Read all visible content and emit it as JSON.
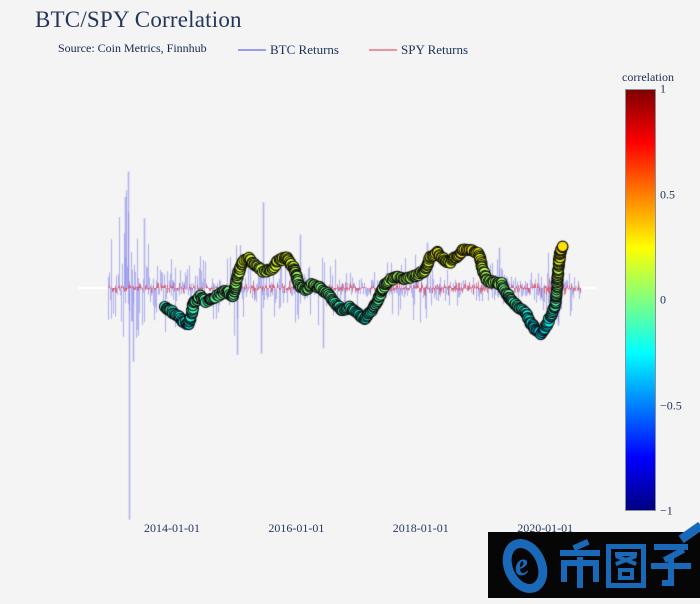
{
  "page": {
    "background": "#f4f4f5",
    "text_color": "#24365a"
  },
  "header": {
    "title": "BTC/SPY Correlation",
    "subtitle": "Source: Coin Metrics, Finnhub"
  },
  "legend": {
    "items": [
      {
        "label": "BTC Returns",
        "color": "#9b9bef"
      },
      {
        "label": "SPY Returns",
        "color": "#f0929b"
      }
    ]
  },
  "colorbar": {
    "title": "correlation",
    "colormap": "jet",
    "min": -1,
    "max": 1,
    "ticks": [
      1,
      0.5,
      0,
      -0.5,
      -1
    ],
    "tick_labels": [
      "1",
      "0.5",
      "0",
      "−0.5",
      "−1"
    ]
  },
  "x_axis": {
    "tick_labels": [
      "2014-01-01",
      "2016-01-01",
      "2018-01-01",
      "2020-01-01"
    ],
    "tick_years": [
      2014,
      2016,
      2018,
      2020
    ]
  },
  "watermark": {
    "text": "币圈子",
    "logo_letter": "e",
    "background": "#060606",
    "color": "#1a69b8"
  },
  "chart_data": {
    "type": "composite",
    "title": "BTC/SPY Correlation",
    "x_range_years": [
      2012.97,
      2020.56
    ],
    "zero_line": {
      "value": 0,
      "color": "#ffffff"
    },
    "series": [
      {
        "name": "BTC Returns",
        "type": "spike-line",
        "color": "rgba(125,125,232,0.55)",
        "volatility_envelope": [
          [
            2013.05,
            0.45
          ],
          [
            2013.2,
            0.62
          ],
          [
            2013.3,
            0.8
          ],
          [
            2013.45,
            0.5
          ],
          [
            2013.7,
            0.38
          ],
          [
            2014.0,
            0.3
          ],
          [
            2014.4,
            0.26
          ],
          [
            2014.8,
            0.22
          ],
          [
            2015.05,
            0.4
          ],
          [
            2015.3,
            0.24
          ],
          [
            2015.7,
            0.22
          ],
          [
            2016.0,
            0.26
          ],
          [
            2016.4,
            0.28
          ],
          [
            2016.8,
            0.16
          ],
          [
            2017.2,
            0.18
          ],
          [
            2017.6,
            0.2
          ],
          [
            2018.1,
            0.28
          ],
          [
            2018.5,
            0.16
          ],
          [
            2019.0,
            0.14
          ],
          [
            2019.3,
            0.24
          ],
          [
            2019.7,
            0.14
          ],
          [
            2020.15,
            0.3
          ],
          [
            2020.4,
            0.22
          ],
          [
            2020.55,
            0.18
          ]
        ],
        "notable_spikes": [
          [
            2013.25,
            0.68
          ],
          [
            2013.295,
            0.87
          ],
          [
            2013.315,
            -1.73
          ],
          [
            2013.38,
            -0.55
          ],
          [
            2013.55,
            0.52
          ],
          [
            2015.05,
            -0.5
          ],
          [
            2015.43,
            -0.49
          ],
          [
            2015.47,
            0.64
          ],
          [
            2016.05,
            0.4
          ],
          [
            2016.42,
            -0.45
          ],
          [
            2018.1,
            0.34
          ],
          [
            2019.25,
            0.3
          ],
          [
            2020.2,
            -0.28
          ]
        ]
      },
      {
        "name": "SPY Returns",
        "type": "spike-line",
        "color": "rgba(218,73,94,0.75)",
        "volatility_envelope": [
          [
            2013.05,
            0.035
          ],
          [
            2014.5,
            0.04
          ],
          [
            2015.7,
            0.05
          ],
          [
            2016.0,
            0.06
          ],
          [
            2016.5,
            0.045
          ],
          [
            2017.5,
            0.035
          ],
          [
            2018.1,
            0.06
          ],
          [
            2018.9,
            0.05
          ],
          [
            2019.5,
            0.04
          ],
          [
            2020.13,
            0.075
          ],
          [
            2020.22,
            0.1
          ],
          [
            2020.4,
            0.06
          ],
          [
            2020.55,
            0.05
          ]
        ],
        "notable_spikes": []
      },
      {
        "name": "rolling correlation",
        "type": "scatter",
        "colormap": "jet",
        "color_range": [
          -1,
          1
        ],
        "points": [
          [
            2013.89,
            -0.14
          ],
          [
            2014.0,
            -0.18
          ],
          [
            2014.11,
            -0.22
          ],
          [
            2014.19,
            -0.25
          ],
          [
            2014.27,
            -0.28
          ],
          [
            2014.35,
            -0.11
          ],
          [
            2014.45,
            -0.06
          ],
          [
            2014.55,
            -0.1
          ],
          [
            2014.66,
            -0.08
          ],
          [
            2014.79,
            -0.04
          ],
          [
            2014.9,
            -0.02
          ],
          [
            2014.98,
            -0.07
          ],
          [
            2015.06,
            0.1
          ],
          [
            2015.14,
            0.2
          ],
          [
            2015.24,
            0.22
          ],
          [
            2015.35,
            0.16
          ],
          [
            2015.46,
            0.13
          ],
          [
            2015.59,
            0.13
          ],
          [
            2015.7,
            0.2
          ],
          [
            2015.83,
            0.23
          ],
          [
            2015.95,
            0.16
          ],
          [
            2016.04,
            0.03
          ],
          [
            2016.15,
            -0.02
          ],
          [
            2016.27,
            0.03
          ],
          [
            2016.38,
            0.0
          ],
          [
            2016.51,
            -0.04
          ],
          [
            2016.64,
            -0.12
          ],
          [
            2016.75,
            -0.17
          ],
          [
            2016.86,
            -0.14
          ],
          [
            2016.97,
            -0.19
          ],
          [
            2017.09,
            -0.23
          ],
          [
            2017.2,
            -0.18
          ],
          [
            2017.28,
            -0.12
          ],
          [
            2017.38,
            -0.01
          ],
          [
            2017.47,
            0.05
          ],
          [
            2017.59,
            0.08
          ],
          [
            2017.71,
            0.07
          ],
          [
            2017.84,
            0.08
          ],
          [
            2017.96,
            0.1
          ],
          [
            2018.07,
            0.13
          ],
          [
            2018.16,
            0.23
          ],
          [
            2018.26,
            0.27
          ],
          [
            2018.36,
            0.22
          ],
          [
            2018.45,
            0.19
          ],
          [
            2018.57,
            0.23
          ],
          [
            2018.66,
            0.28
          ],
          [
            2018.76,
            0.29
          ],
          [
            2018.86,
            0.28
          ],
          [
            2018.94,
            0.25
          ],
          [
            2019.0,
            0.13
          ],
          [
            2019.08,
            0.05
          ],
          [
            2019.2,
            0.04
          ],
          [
            2019.29,
            0.03
          ],
          [
            2019.39,
            -0.05
          ],
          [
            2019.48,
            -0.1
          ],
          [
            2019.58,
            -0.15
          ],
          [
            2019.68,
            -0.19
          ],
          [
            2019.77,
            -0.26
          ],
          [
            2019.85,
            -0.32
          ],
          [
            2019.93,
            -0.34
          ],
          [
            2020.01,
            -0.29
          ],
          [
            2020.09,
            -0.21
          ],
          [
            2020.16,
            -0.13
          ],
          [
            2020.19,
            0.01
          ],
          [
            2020.22,
            0.19
          ],
          [
            2020.25,
            0.28
          ],
          [
            2020.28,
            0.31
          ]
        ]
      }
    ]
  }
}
